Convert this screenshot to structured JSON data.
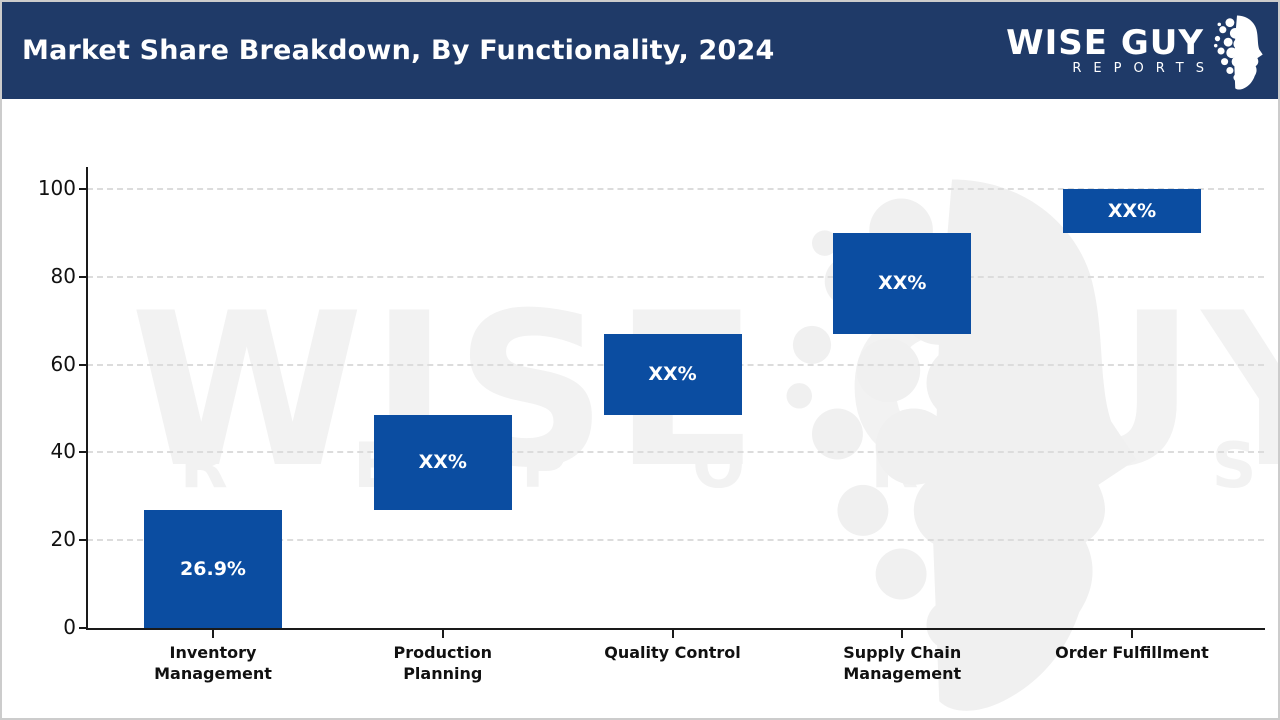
{
  "header": {
    "title": "Market Share Breakdown, By Functionality, 2024",
    "logo": {
      "brand_top": "WISE GUY",
      "brand_bottom": "REPORTS"
    }
  },
  "watermark": {
    "line1": "WISE GUY",
    "line2": "R E P O R T S"
  },
  "chart_data": {
    "type": "bar",
    "subtype": "waterfall",
    "title": "Market Share Breakdown, By Functionality, 2024",
    "categories": [
      "Inventory Management",
      "Production Planning",
      "Quality Control",
      "Supply Chain Management",
      "Order Fulfillment"
    ],
    "category_label_lines": [
      [
        "Inventory",
        "Management"
      ],
      [
        "Production",
        "Planning"
      ],
      [
        "Quality Control"
      ],
      [
        "Supply Chain",
        "Management"
      ],
      [
        "Order Fulfillment"
      ]
    ],
    "segments": [
      {
        "category": "Inventory Management",
        "start": 0,
        "end": 26.9,
        "label": "26.9%"
      },
      {
        "category": "Production Planning",
        "start": 26.9,
        "end": 48.5,
        "label": "XX%"
      },
      {
        "category": "Quality Control",
        "start": 48.5,
        "end": 67.0,
        "label": "XX%"
      },
      {
        "category": "Supply Chain Management",
        "start": 67.0,
        "end": 90.0,
        "label": "XX%"
      },
      {
        "category": "Order Fulfillment",
        "start": 90.0,
        "end": 100.0,
        "label": "XX%"
      }
    ],
    "y_ticks": [
      0,
      20,
      40,
      60,
      80,
      100
    ],
    "ylim": [
      0,
      105
    ],
    "xlabel": "",
    "ylabel": "",
    "grid": "horizontal-dashed",
    "legend": "none",
    "colors": {
      "bar": "#0b4da1",
      "bar_label": "#ffffff",
      "axis": "#1a1a1a",
      "gridline": "#dcdcdc",
      "header_bg": "#1f3a68",
      "watermark": "#f2f2f2",
      "page_border": "#cccccc"
    }
  }
}
